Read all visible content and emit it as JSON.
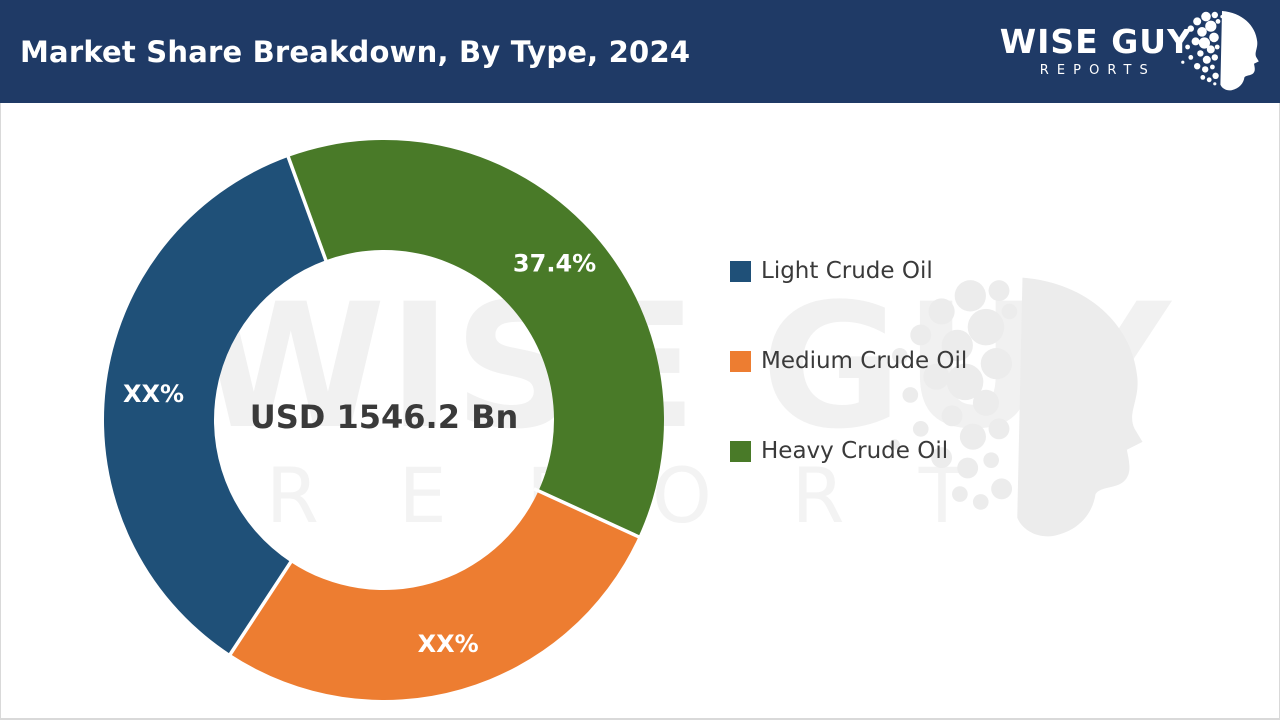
{
  "header": {
    "title": "Market Share Breakdown, By Type, 2024",
    "logo": {
      "wordmark": "WISE GUY",
      "subtitle": "REPORTS"
    }
  },
  "colors": {
    "header_bg": "#1f3a66",
    "light_crude_blue": "#1f5078",
    "medium_crude_orange": "#ed7d31",
    "heavy_crude_green": "#497a28",
    "center_text": "#3a3a3a",
    "watermark_gray": "#f1f1f1"
  },
  "legend": {
    "items": [
      {
        "label": "Light Crude Oil",
        "color": "#1f5078"
      },
      {
        "label": "Medium Crude Oil",
        "color": "#ed7d31"
      },
      {
        "label": "Heavy Crude Oil",
        "color": "#497a28"
      }
    ]
  },
  "chart_data": {
    "type": "pie",
    "donut": true,
    "title": "Market Share Breakdown, By Type, 2024",
    "center_label": "USD 1546.2 Bn",
    "start_angle_deg": -20,
    "direction": "clockwise",
    "legend_position": "right",
    "segments": [
      {
        "name": "Heavy Crude Oil",
        "value_pct": 37.4,
        "label": "37.4%",
        "color": "#497a28"
      },
      {
        "name": "Medium Crude Oil",
        "value_pct": 27.4,
        "label": "XX%",
        "color": "#ed7d31"
      },
      {
        "name": "Light Crude Oil",
        "value_pct": 35.2,
        "label": "XX%",
        "color": "#1f5078"
      }
    ]
  },
  "watermark": {
    "wordmark": "WISE GUY",
    "subtitle": "REPORTS"
  }
}
